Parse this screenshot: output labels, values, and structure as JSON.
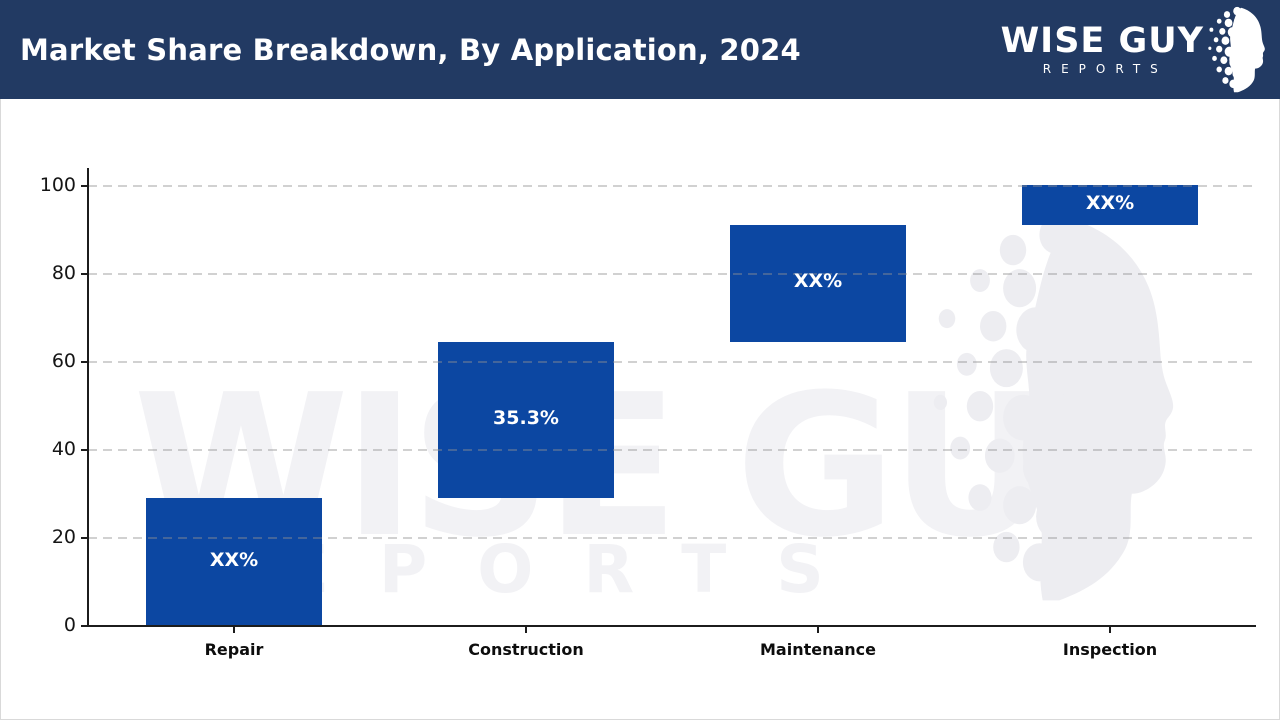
{
  "header": {
    "title": "Market Share Breakdown, By Application, 2024",
    "logo": {
      "line1": "WISE GUY",
      "line2": "REPORTS",
      "icon": "dotted-face-icon"
    }
  },
  "watermark": {
    "line1": "WISE GU",
    "line2": "REPORTS",
    "icon": "dotted-face-icon"
  },
  "colors": {
    "header_bg": "#223a63",
    "bar": "#0c47a2",
    "bar_label": "#ffffff",
    "axis": "#1c1c1c",
    "watermark": "#f2f2f5",
    "watermark_head": "#ededf1"
  },
  "chart_data": {
    "type": "bar",
    "variant": "floating-waterfall",
    "title": "Market Share Breakdown, By Application, 2024",
    "categories": [
      "Repair",
      "Construction",
      "Maintenance",
      "Inspection"
    ],
    "bars": [
      {
        "category": "Repair",
        "start": 0,
        "end": 29.2,
        "label": "XX%"
      },
      {
        "category": "Construction",
        "start": 29.2,
        "end": 64.5,
        "label": "35.3%"
      },
      {
        "category": "Maintenance",
        "start": 64.5,
        "end": 91.2,
        "label": "XX%"
      },
      {
        "category": "Inspection",
        "start": 91.2,
        "end": 100.2,
        "label": "XX%"
      }
    ],
    "y_ticks": [
      0,
      20,
      40,
      60,
      80,
      100
    ],
    "ylim": [
      0,
      104
    ],
    "xlabel": "",
    "ylabel": "",
    "grid": "horizontal-dashed",
    "legend": "none"
  }
}
